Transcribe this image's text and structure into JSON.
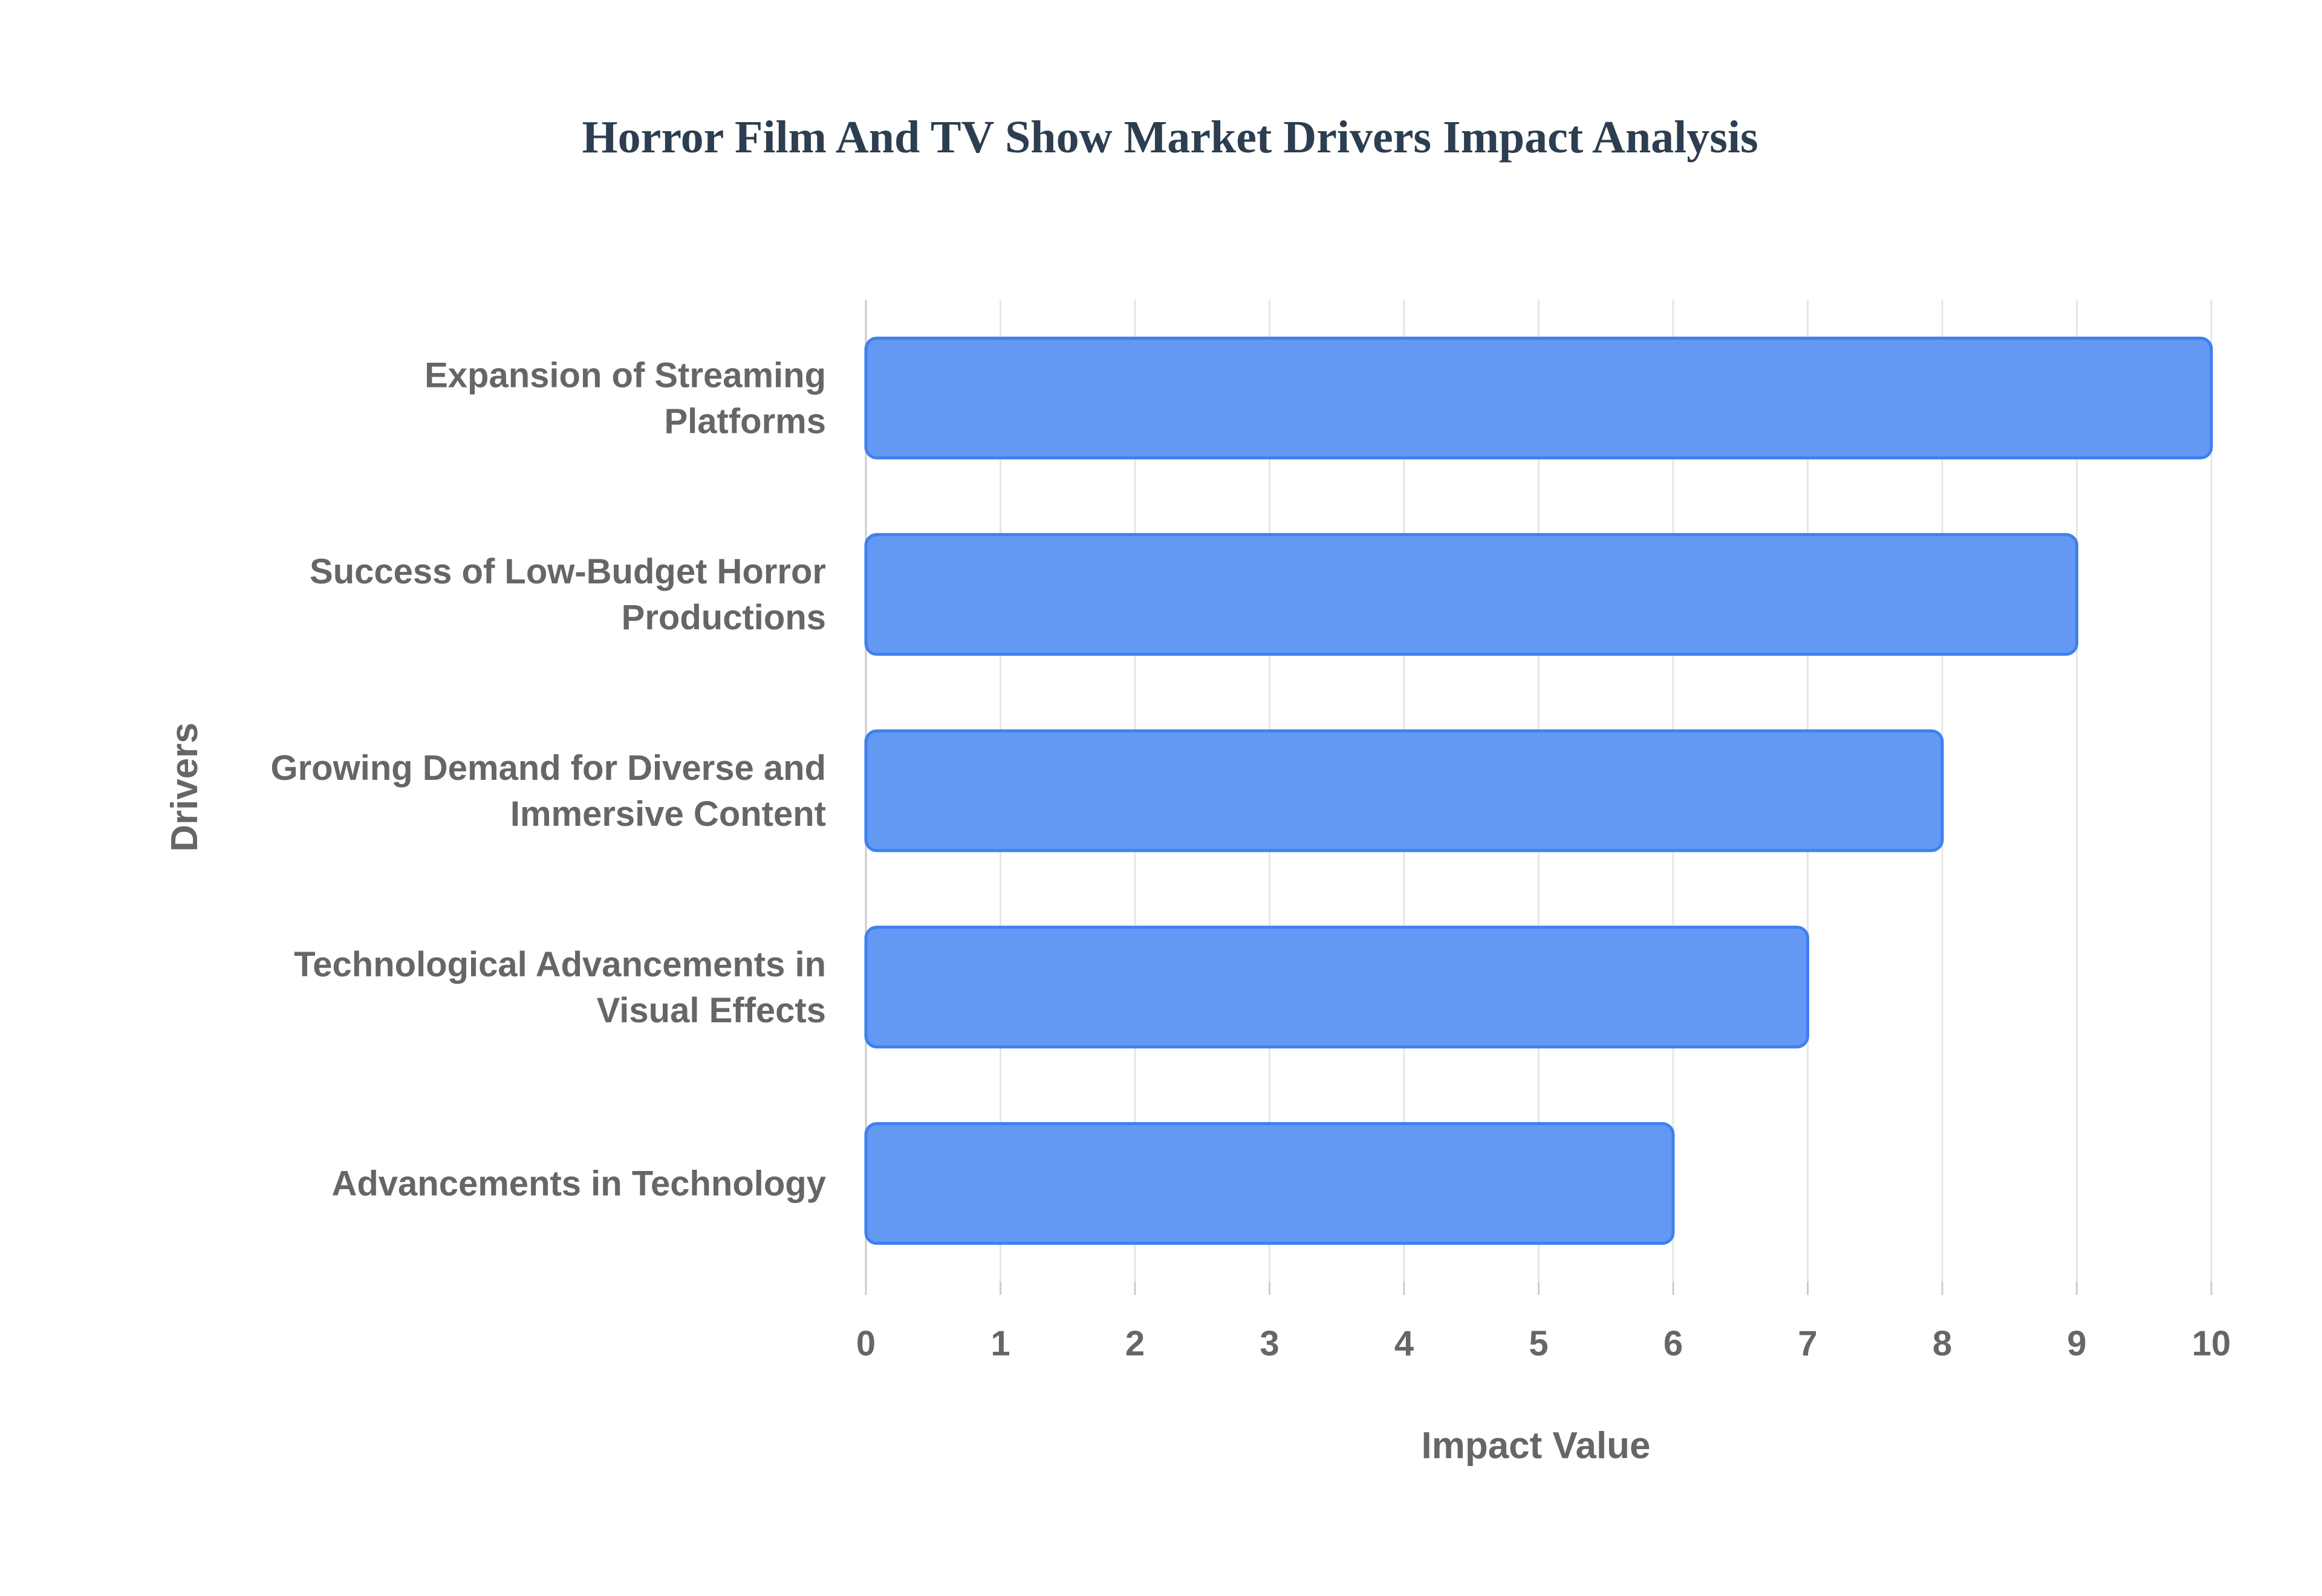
{
  "chart_data": {
    "type": "bar",
    "orientation": "horizontal",
    "title": "Horror Film And TV Show Market Drivers Impact Analysis",
    "xlabel": "Impact Value",
    "ylabel": "Drivers",
    "categories": [
      [
        "Expansion of Streaming",
        "Platforms"
      ],
      [
        "Success of Low-Budget Horror",
        "Productions"
      ],
      [
        "Growing Demand for Diverse and",
        "Immersive Content"
      ],
      [
        "Technological Advancements in",
        "Visual Effects"
      ],
      [
        "Advancements in Technology"
      ]
    ],
    "values": [
      10,
      9,
      8,
      7,
      6
    ],
    "xlim": [
      0,
      10
    ],
    "xticks": [
      "0",
      "1",
      "2",
      "3",
      "4",
      "5",
      "6",
      "7",
      "8",
      "9",
      "10"
    ],
    "grid": "vertical",
    "legend": "none",
    "colors": {
      "bar_fill": "#6399f3",
      "bar_stroke": "#3f80ee",
      "grid": "#e6e6e6",
      "axis_text": "#666666",
      "title": "#2c3e50"
    }
  }
}
